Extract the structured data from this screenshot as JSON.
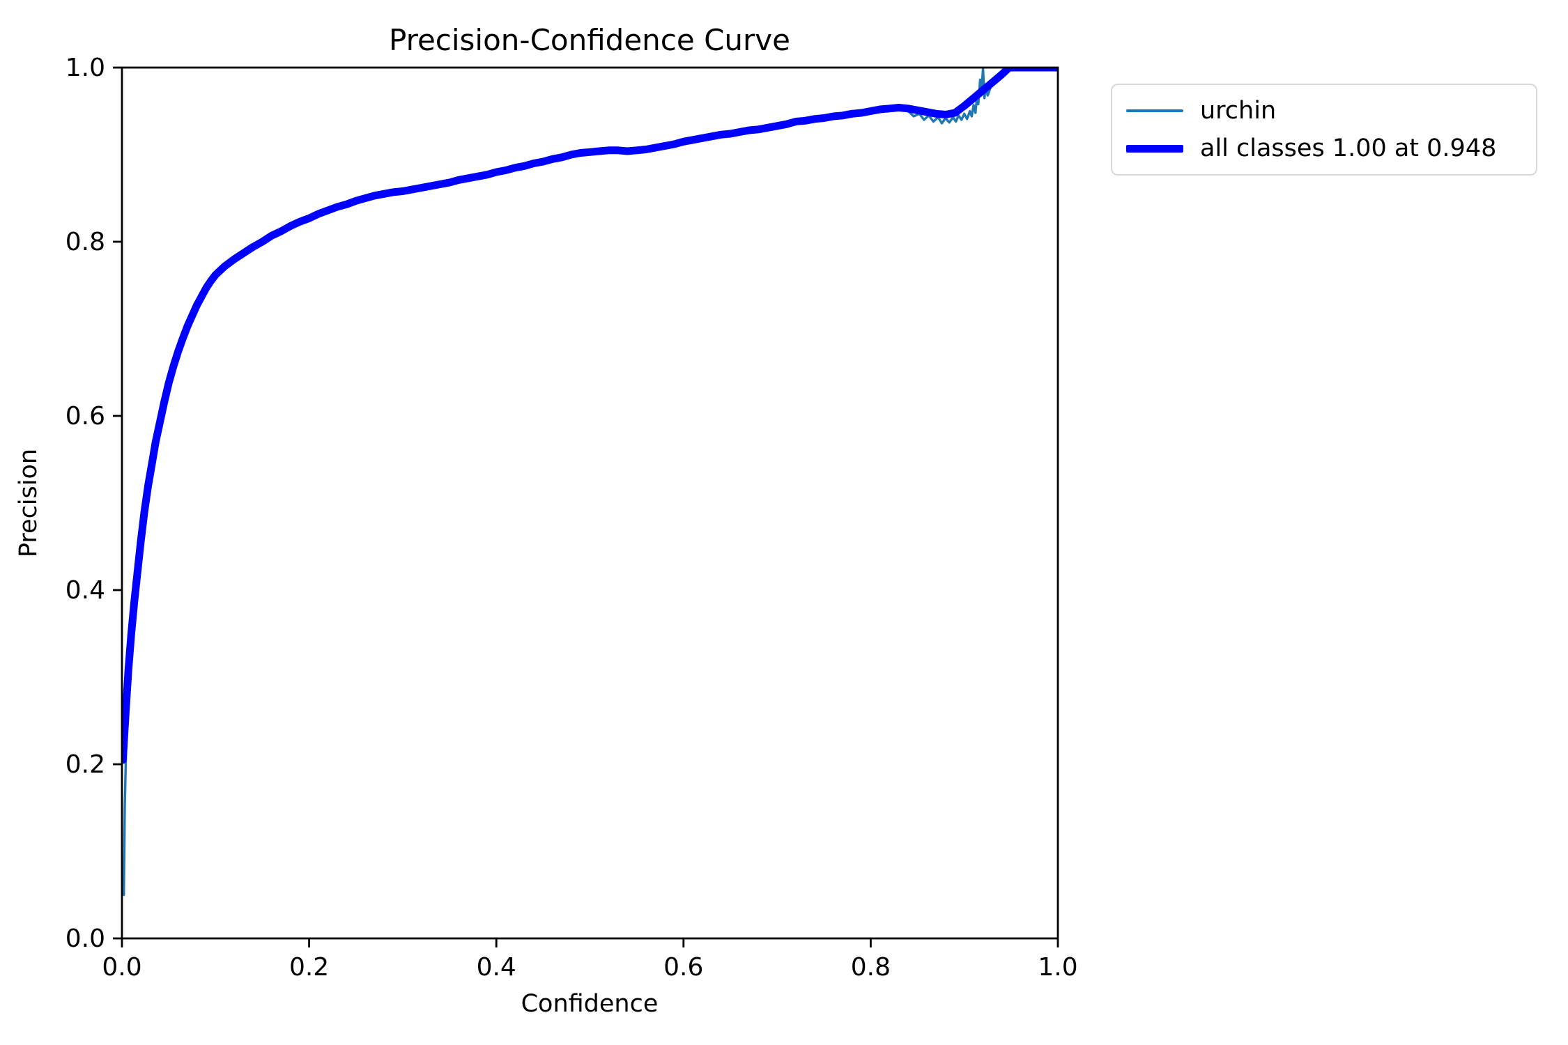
{
  "chart_data": {
    "type": "line",
    "title": "Precision-Confidence Curve",
    "xlabel": "Confidence",
    "ylabel": "Precision",
    "xlim": [
      0.0,
      1.0
    ],
    "ylim": [
      0.0,
      1.0
    ],
    "xticks": [
      "0.0",
      "0.2",
      "0.4",
      "0.6",
      "0.8",
      "1.0"
    ],
    "yticks": [
      "0.0",
      "0.2",
      "0.4",
      "0.6",
      "0.8",
      "1.0"
    ],
    "grid": false,
    "legend": {
      "position": "outside-upper-right",
      "background": "#ffffff",
      "border_color": "#d8d8d8"
    },
    "axis_color": "#000000",
    "background_color": "#ffffff",
    "series": [
      {
        "name": "urchin",
        "color": "#1f77b4",
        "line_width": 3.4,
        "points": [
          [
            0.002,
            0.05
          ],
          [
            0.0025,
            0.1
          ],
          [
            0.003,
            0.15
          ],
          [
            0.004,
            0.2
          ],
          [
            0.005,
            0.245
          ],
          [
            0.006,
            0.285
          ],
          [
            0.008,
            0.325
          ],
          [
            0.01,
            0.36
          ],
          [
            0.013,
            0.395
          ],
          [
            0.016,
            0.425
          ],
          [
            0.02,
            0.465
          ],
          [
            0.024,
            0.5
          ],
          [
            0.028,
            0.53
          ],
          [
            0.032,
            0.555
          ],
          [
            0.036,
            0.578
          ],
          [
            0.04,
            0.598
          ],
          [
            0.045,
            0.622
          ],
          [
            0.05,
            0.645
          ],
          [
            0.055,
            0.663
          ],
          [
            0.06,
            0.68
          ],
          [
            0.065,
            0.694
          ],
          [
            0.07,
            0.708
          ],
          [
            0.075,
            0.72
          ],
          [
            0.08,
            0.731
          ],
          [
            0.085,
            0.741
          ],
          [
            0.09,
            0.75
          ],
          [
            0.095,
            0.758
          ],
          [
            0.1,
            0.765
          ],
          [
            0.11,
            0.775
          ],
          [
            0.12,
            0.783
          ],
          [
            0.13,
            0.79
          ],
          [
            0.14,
            0.797
          ],
          [
            0.15,
            0.803
          ],
          [
            0.16,
            0.809
          ],
          [
            0.18,
            0.819
          ],
          [
            0.2,
            0.828
          ],
          [
            0.22,
            0.837
          ],
          [
            0.24,
            0.844
          ],
          [
            0.26,
            0.85
          ],
          [
            0.28,
            0.855
          ],
          [
            0.3,
            0.858
          ],
          [
            0.32,
            0.862
          ],
          [
            0.34,
            0.866
          ],
          [
            0.36,
            0.871
          ],
          [
            0.38,
            0.875
          ],
          [
            0.4,
            0.88
          ],
          [
            0.42,
            0.885
          ],
          [
            0.44,
            0.89
          ],
          [
            0.46,
            0.895
          ],
          [
            0.48,
            0.9
          ],
          [
            0.5,
            0.903
          ],
          [
            0.52,
            0.905
          ],
          [
            0.54,
            0.904
          ],
          [
            0.56,
            0.906
          ],
          [
            0.58,
            0.91
          ],
          [
            0.6,
            0.915
          ],
          [
            0.62,
            0.919
          ],
          [
            0.64,
            0.923
          ],
          [
            0.66,
            0.926
          ],
          [
            0.68,
            0.929
          ],
          [
            0.7,
            0.933
          ],
          [
            0.72,
            0.938
          ],
          [
            0.74,
            0.941
          ],
          [
            0.76,
            0.944
          ],
          [
            0.78,
            0.947
          ],
          [
            0.8,
            0.95
          ],
          [
            0.815,
            0.952
          ],
          [
            0.83,
            0.953
          ],
          [
            0.84,
            0.95
          ],
          [
            0.846,
            0.944
          ],
          [
            0.852,
            0.947
          ],
          [
            0.857,
            0.94
          ],
          [
            0.862,
            0.945
          ],
          [
            0.867,
            0.938
          ],
          [
            0.872,
            0.943
          ],
          [
            0.876,
            0.936
          ],
          [
            0.88,
            0.942
          ],
          [
            0.884,
            0.937
          ],
          [
            0.888,
            0.943
          ],
          [
            0.891,
            0.938
          ],
          [
            0.894,
            0.945
          ],
          [
            0.897,
            0.94
          ],
          [
            0.9,
            0.947
          ],
          [
            0.903,
            0.941
          ],
          [
            0.906,
            0.95
          ],
          [
            0.908,
            0.944
          ],
          [
            0.91,
            0.957
          ],
          [
            0.912,
            0.948
          ],
          [
            0.914,
            0.972
          ],
          [
            0.915,
            0.958
          ],
          [
            0.917,
            0.986
          ],
          [
            0.918,
            0.968
          ],
          [
            0.92,
            0.999
          ],
          [
            0.9215,
            0.965
          ],
          [
            0.923,
            0.978
          ],
          [
            0.925,
            0.968
          ],
          [
            0.93,
            0.983
          ],
          [
            0.94,
            0.992
          ],
          [
            0.948,
            1.0
          ],
          [
            1.0,
            1.0
          ]
        ]
      },
      {
        "name": "all classes 1.00 at 0.948",
        "color": "#0000ff",
        "line_width": 11,
        "points": [
          [
            0.001,
            0.205
          ],
          [
            0.004,
            0.26
          ],
          [
            0.007,
            0.31
          ],
          [
            0.01,
            0.35
          ],
          [
            0.013,
            0.385
          ],
          [
            0.016,
            0.415
          ],
          [
            0.02,
            0.455
          ],
          [
            0.024,
            0.49
          ],
          [
            0.028,
            0.52
          ],
          [
            0.032,
            0.545
          ],
          [
            0.036,
            0.57
          ],
          [
            0.04,
            0.59
          ],
          [
            0.045,
            0.615
          ],
          [
            0.05,
            0.638
          ],
          [
            0.055,
            0.657
          ],
          [
            0.06,
            0.674
          ],
          [
            0.065,
            0.689
          ],
          [
            0.07,
            0.703
          ],
          [
            0.075,
            0.715
          ],
          [
            0.08,
            0.727
          ],
          [
            0.085,
            0.737
          ],
          [
            0.09,
            0.747
          ],
          [
            0.095,
            0.755
          ],
          [
            0.1,
            0.762
          ],
          [
            0.11,
            0.772
          ],
          [
            0.12,
            0.78
          ],
          [
            0.13,
            0.787
          ],
          [
            0.14,
            0.794
          ],
          [
            0.15,
            0.8
          ],
          [
            0.16,
            0.807
          ],
          [
            0.17,
            0.812
          ],
          [
            0.18,
            0.818
          ],
          [
            0.19,
            0.823
          ],
          [
            0.2,
            0.827
          ],
          [
            0.21,
            0.832
          ],
          [
            0.22,
            0.836
          ],
          [
            0.23,
            0.84
          ],
          [
            0.24,
            0.843
          ],
          [
            0.25,
            0.847
          ],
          [
            0.26,
            0.85
          ],
          [
            0.27,
            0.853
          ],
          [
            0.28,
            0.855
          ],
          [
            0.29,
            0.857
          ],
          [
            0.3,
            0.858
          ],
          [
            0.31,
            0.86
          ],
          [
            0.32,
            0.862
          ],
          [
            0.33,
            0.864
          ],
          [
            0.34,
            0.866
          ],
          [
            0.35,
            0.868
          ],
          [
            0.36,
            0.871
          ],
          [
            0.37,
            0.873
          ],
          [
            0.38,
            0.875
          ],
          [
            0.39,
            0.877
          ],
          [
            0.4,
            0.88
          ],
          [
            0.41,
            0.882
          ],
          [
            0.42,
            0.885
          ],
          [
            0.43,
            0.887
          ],
          [
            0.44,
            0.89
          ],
          [
            0.45,
            0.892
          ],
          [
            0.46,
            0.895
          ],
          [
            0.47,
            0.897
          ],
          [
            0.48,
            0.9
          ],
          [
            0.49,
            0.902
          ],
          [
            0.5,
            0.903
          ],
          [
            0.51,
            0.904
          ],
          [
            0.52,
            0.905
          ],
          [
            0.53,
            0.905
          ],
          [
            0.54,
            0.904
          ],
          [
            0.55,
            0.905
          ],
          [
            0.56,
            0.906
          ],
          [
            0.57,
            0.908
          ],
          [
            0.58,
            0.91
          ],
          [
            0.59,
            0.912
          ],
          [
            0.6,
            0.915
          ],
          [
            0.61,
            0.917
          ],
          [
            0.62,
            0.919
          ],
          [
            0.63,
            0.921
          ],
          [
            0.64,
            0.923
          ],
          [
            0.65,
            0.924
          ],
          [
            0.66,
            0.926
          ],
          [
            0.67,
            0.928
          ],
          [
            0.68,
            0.929
          ],
          [
            0.69,
            0.931
          ],
          [
            0.7,
            0.933
          ],
          [
            0.71,
            0.935
          ],
          [
            0.72,
            0.938
          ],
          [
            0.73,
            0.939
          ],
          [
            0.74,
            0.941
          ],
          [
            0.75,
            0.942
          ],
          [
            0.76,
            0.944
          ],
          [
            0.77,
            0.945
          ],
          [
            0.78,
            0.947
          ],
          [
            0.79,
            0.948
          ],
          [
            0.8,
            0.95
          ],
          [
            0.81,
            0.952
          ],
          [
            0.82,
            0.953
          ],
          [
            0.83,
            0.954
          ],
          [
            0.84,
            0.953
          ],
          [
            0.85,
            0.951
          ],
          [
            0.86,
            0.949
          ],
          [
            0.87,
            0.947
          ],
          [
            0.88,
            0.946
          ],
          [
            0.89,
            0.948
          ],
          [
            0.9,
            0.956
          ],
          [
            0.91,
            0.965
          ],
          [
            0.92,
            0.974
          ],
          [
            0.93,
            0.983
          ],
          [
            0.94,
            0.992
          ],
          [
            0.948,
            1.0
          ],
          [
            1.0,
            1.0
          ]
        ]
      }
    ]
  }
}
